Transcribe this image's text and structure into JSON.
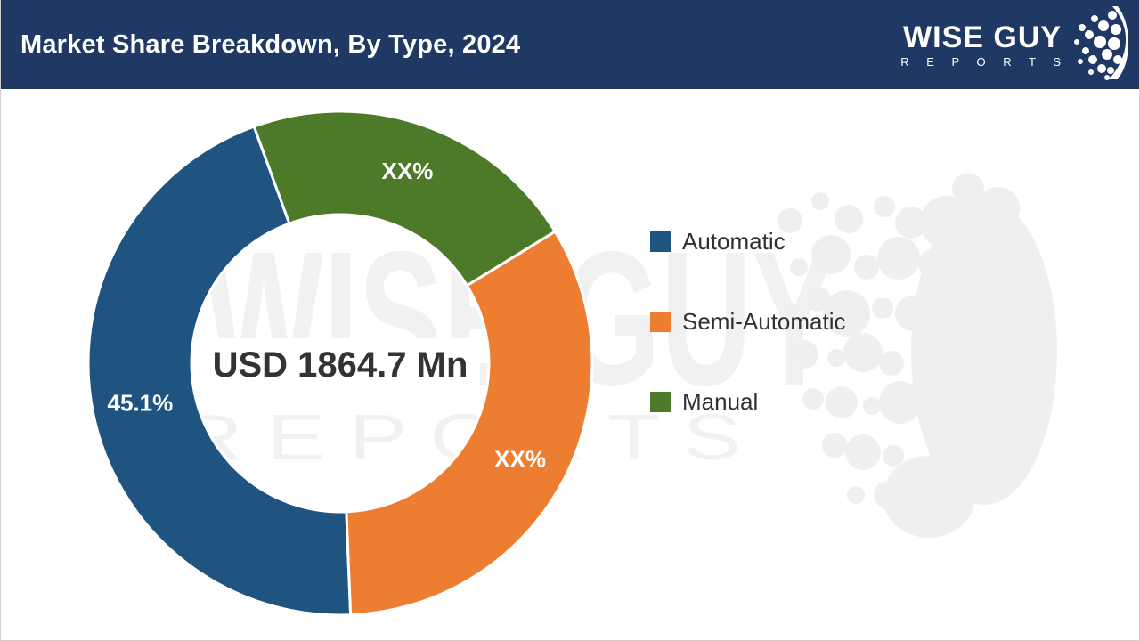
{
  "header": {
    "title": "Market Share Breakdown, By Type, 2024",
    "bg_color": "#203864",
    "logo": {
      "line1": "WISE GUY",
      "line2": "R E P O R T S"
    }
  },
  "watermark": {
    "line1": "WISE GUY",
    "line2": "R E P O R T S",
    "color": "#f1f1f1"
  },
  "chart_data": {
    "type": "pie",
    "subtype": "donut",
    "title": "Market Share Breakdown, By Type, 2024",
    "center_label": "USD 1864.7 Mn",
    "start_angle_deg": 110,
    "direction": "counterclockwise",
    "inner_radius_ratio": 0.59,
    "categories": [
      "Automatic",
      "Semi-Automatic",
      "Manual"
    ],
    "series": [
      {
        "name": "Automatic",
        "value": 45.1,
        "label": "45.1%",
        "color": "#1F5380"
      },
      {
        "name": "Semi-Automatic",
        "value": 33.1,
        "label": "XX%",
        "color": "#ED7D31"
      },
      {
        "name": "Manual",
        "value": 21.8,
        "label": "XX%",
        "color": "#4C7A28"
      }
    ],
    "legend_position": "right"
  }
}
